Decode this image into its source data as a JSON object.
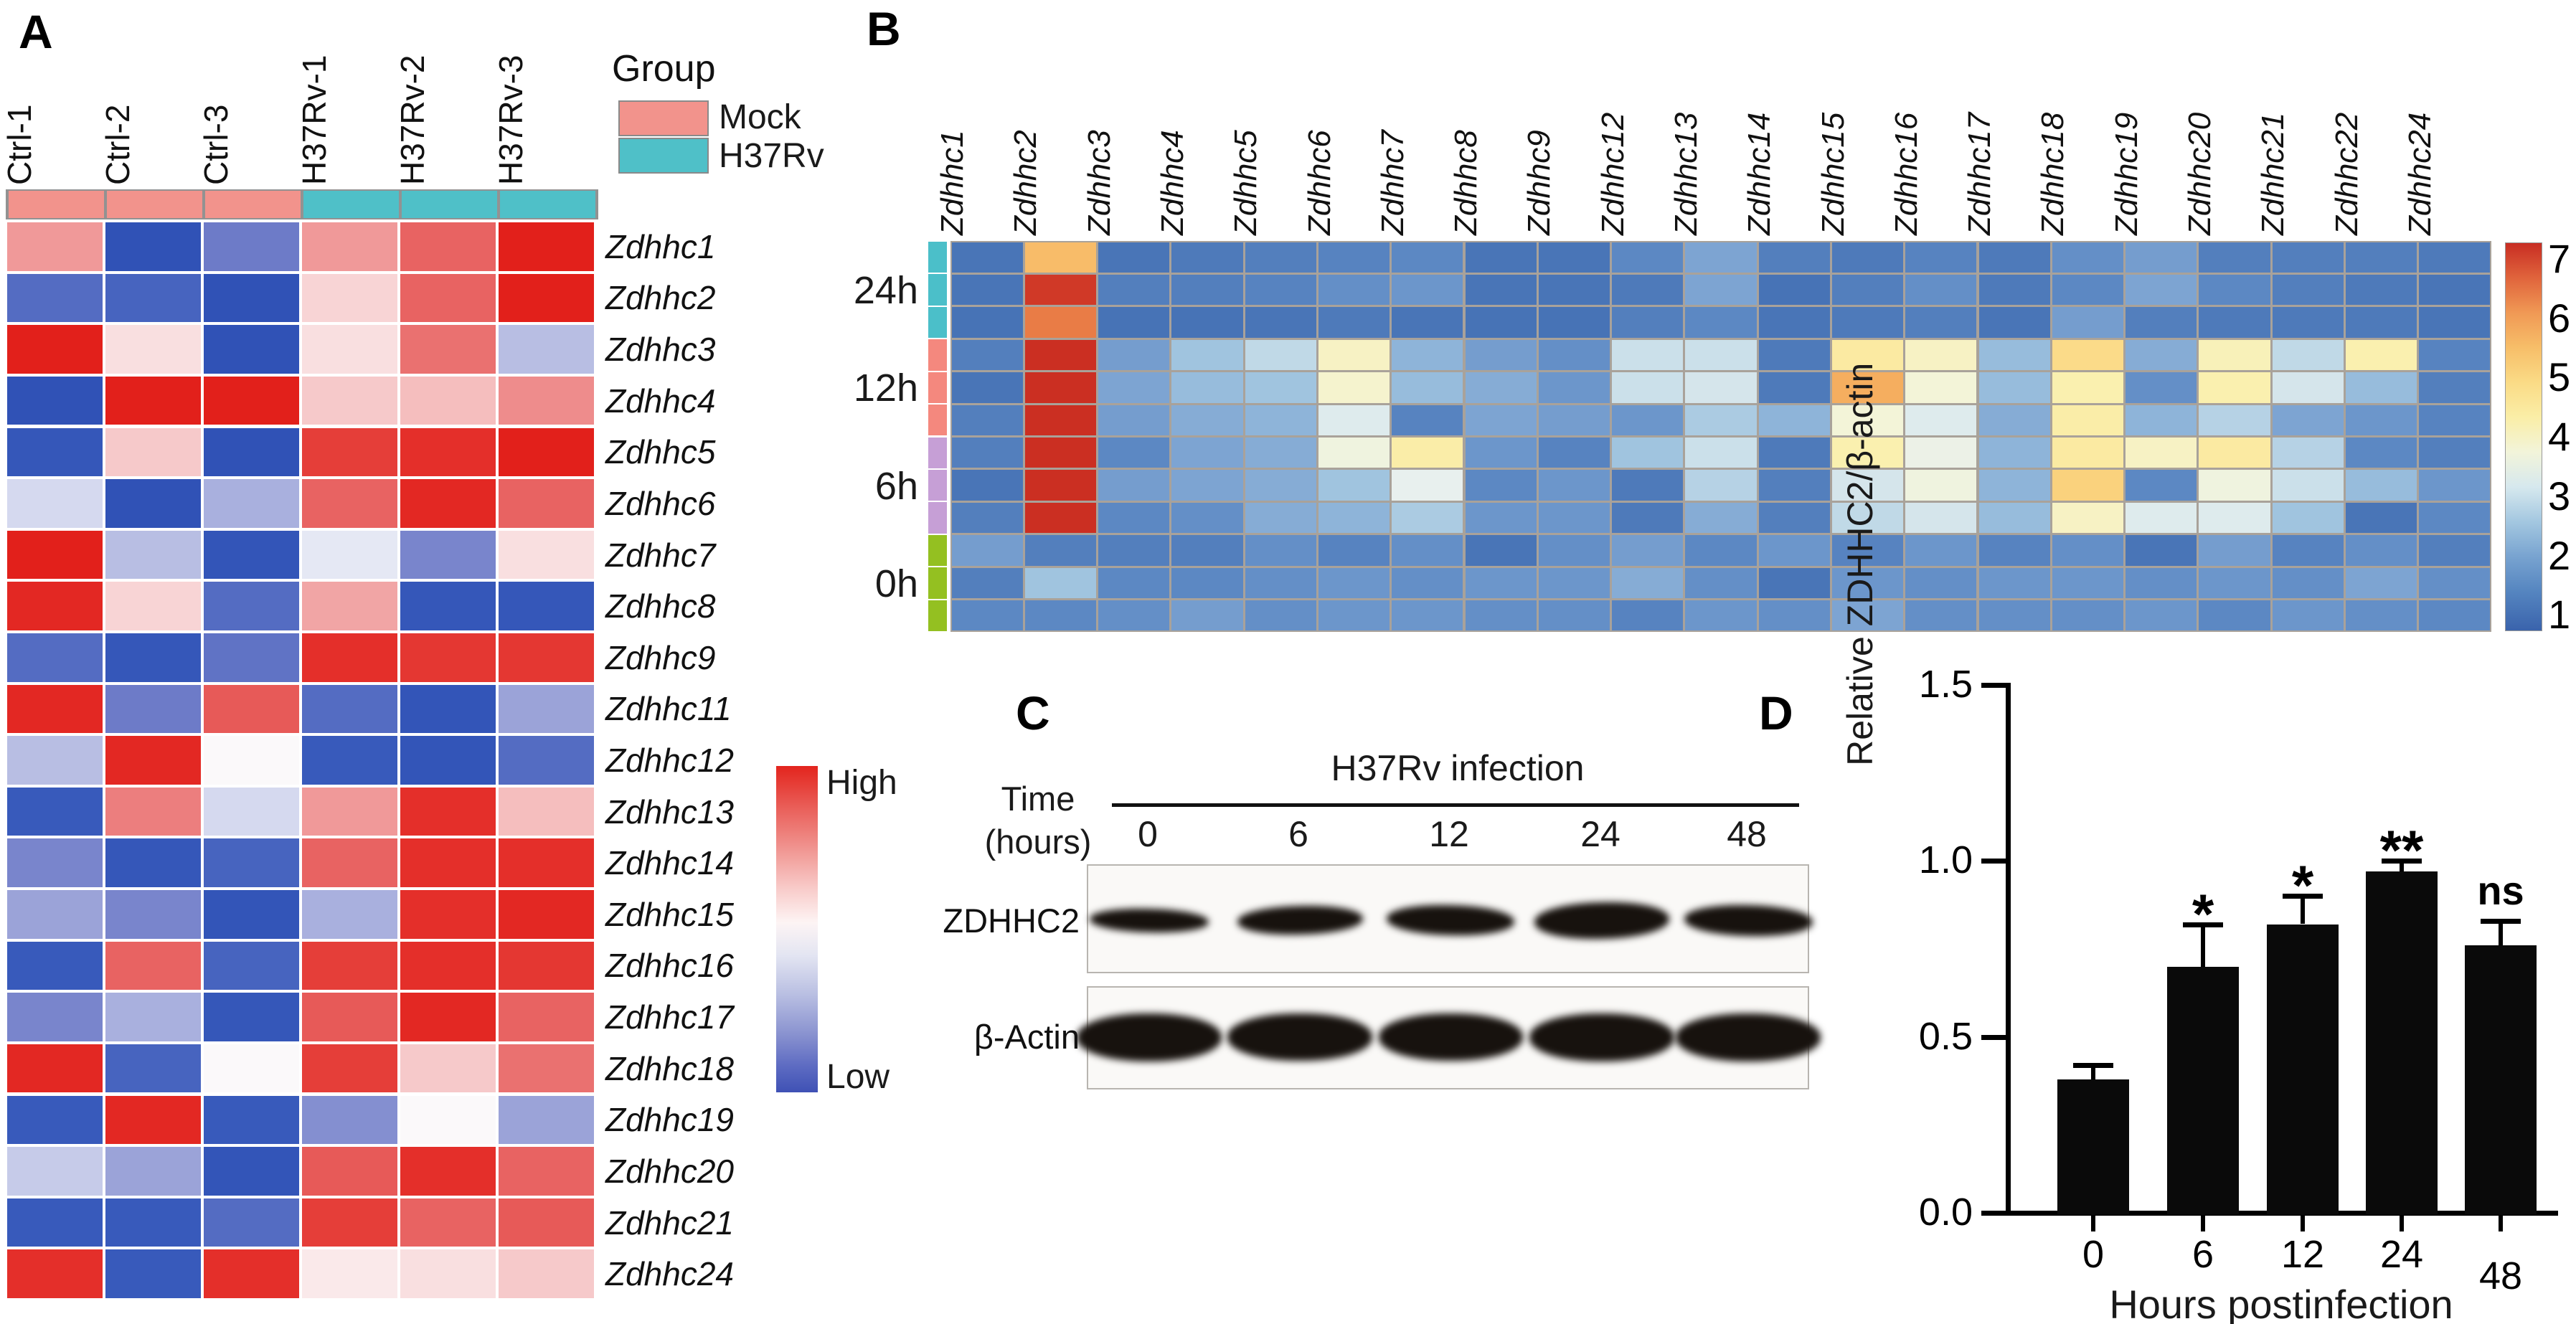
{
  "panels": {
    "a": "A",
    "b": "B",
    "c": "C",
    "d": "D"
  },
  "chart_data": [
    {
      "id": "panel_a_heatmap",
      "type": "heatmap",
      "columns": [
        "Ctrl-1",
        "Ctrl-2",
        "Ctrl-3",
        "H37Rv-1",
        "H37Rv-2",
        "H37Rv-3"
      ],
      "rows": [
        "Zdhhc1",
        "Zdhhc2",
        "Zdhhc3",
        "Zdhhc4",
        "Zdhhc5",
        "Zdhhc6",
        "Zdhhc7",
        "Zdhhc8",
        "Zdhhc9",
        "Zdhhc11",
        "Zdhhc12",
        "Zdhhc13",
        "Zdhhc14",
        "Zdhhc15",
        "Zdhhc16",
        "Zdhhc17",
        "Zdhhc18",
        "Zdhhc19",
        "Zdhhc20",
        "Zdhhc21",
        "Zdhhc24"
      ],
      "column_groups": [
        "Mock",
        "Mock",
        "Mock",
        "H37Rv",
        "H37Rv",
        "H37Rv"
      ],
      "legend": {
        "title": "Group",
        "entries": [
          {
            "label": "Mock",
            "color": "#F2938C"
          },
          {
            "label": "H37Rv",
            "color": "#4FC0C8"
          }
        ]
      },
      "colorbar": {
        "top": "High",
        "bottom": "Low"
      },
      "value_range": [
        -2,
        2
      ],
      "values": [
        [
          0.8,
          -1.8,
          -1.0,
          0.8,
          1.2,
          2.0
        ],
        [
          -1.2,
          -1.3,
          -1.8,
          0.3,
          1.2,
          2.0
        ],
        [
          2.0,
          0.2,
          -1.8,
          0.2,
          1.1,
          -0.4
        ],
        [
          -1.8,
          2.0,
          2.0,
          0.4,
          0.5,
          0.9
        ],
        [
          -1.6,
          0.4,
          -1.8,
          1.6,
          1.8,
          2.0
        ],
        [
          -0.2,
          -1.8,
          -0.5,
          1.2,
          1.9,
          1.2
        ],
        [
          2.0,
          -0.4,
          -1.7,
          -0.1,
          -0.9,
          0.2
        ],
        [
          1.9,
          0.3,
          -1.2,
          0.7,
          -1.6,
          -1.6
        ],
        [
          -1.2,
          -1.6,
          -1.1,
          1.8,
          1.7,
          1.7
        ],
        [
          1.9,
          -1.0,
          1.3,
          -1.2,
          -1.7,
          -0.6
        ],
        [
          -0.4,
          1.9,
          0.0,
          -1.5,
          -1.7,
          -1.2
        ],
        [
          -1.5,
          1.0,
          -0.2,
          0.8,
          1.8,
          0.5
        ],
        [
          -0.9,
          -1.6,
          -1.3,
          1.2,
          1.8,
          1.8
        ],
        [
          -0.6,
          -0.9,
          -1.7,
          -0.5,
          1.8,
          1.9
        ],
        [
          -1.5,
          1.2,
          -1.3,
          1.6,
          1.8,
          1.7
        ],
        [
          -0.9,
          -0.5,
          -1.6,
          1.3,
          1.9,
          1.2
        ],
        [
          1.9,
          -1.3,
          0.0,
          1.6,
          0.4,
          1.1
        ],
        [
          -1.5,
          1.9,
          -1.5,
          -0.8,
          0.0,
          -0.6
        ],
        [
          -0.3,
          -0.6,
          -1.7,
          1.3,
          1.8,
          1.2
        ],
        [
          -1.5,
          -1.5,
          -1.2,
          1.6,
          1.2,
          1.3
        ],
        [
          1.8,
          -1.5,
          1.8,
          0.1,
          0.2,
          0.4
        ]
      ]
    },
    {
      "id": "panel_b_heatmap",
      "type": "heatmap",
      "columns": [
        "Zdhhc1",
        "Zdhhc2",
        "Zdhhc3",
        "Zdhhc4",
        "Zdhhc5",
        "Zdhhc6",
        "Zdhhc7",
        "Zdhhc8",
        "Zdhhc9",
        "Zdhhc12",
        "Zdhhc13",
        "Zdhhc14",
        "Zdhhc15",
        "Zdhhc16",
        "Zdhhc17",
        "Zdhhc18",
        "Zdhhc19",
        "Zdhhc20",
        "Zdhhc21",
        "Zdhhc22",
        "Zdhhc24"
      ],
      "row_groups": [
        {
          "label": "24h",
          "color": "#4BBFC9",
          "rows": 3
        },
        {
          "label": "12h",
          "color": "#F4887E",
          "rows": 3
        },
        {
          "label": "6h",
          "color": "#C69FD6",
          "rows": 3
        },
        {
          "label": "0h",
          "color": "#94C021",
          "rows": 3
        }
      ],
      "colorbar": {
        "ticks": [
          7,
          6,
          5,
          4,
          3,
          2,
          1
        ]
      },
      "value_range": [
        1,
        7
      ],
      "values": [
        [
          1.8,
          5.6,
          1.8,
          1.9,
          2.0,
          2.1,
          2.2,
          1.8,
          1.8,
          2.2,
          2.6,
          2.0,
          1.9,
          2.1,
          1.9,
          2.3,
          2.5,
          2.0,
          2.0,
          2.0,
          1.9
        ],
        [
          1.8,
          6.9,
          2.0,
          2.0,
          2.1,
          2.3,
          2.4,
          1.8,
          1.8,
          1.9,
          2.6,
          1.7,
          2.0,
          2.3,
          1.9,
          2.2,
          2.6,
          2.2,
          2.0,
          1.9,
          1.8
        ],
        [
          1.7,
          6.3,
          1.7,
          1.7,
          1.8,
          1.9,
          1.8,
          1.7,
          1.7,
          2.0,
          2.2,
          1.8,
          1.9,
          2.0,
          1.8,
          2.5,
          2.0,
          1.9,
          1.9,
          1.9,
          1.8
        ],
        [
          2.0,
          7.0,
          2.5,
          3.0,
          3.3,
          4.2,
          2.8,
          2.5,
          2.3,
          3.4,
          3.4,
          1.9,
          4.6,
          4.2,
          2.9,
          5.0,
          2.7,
          4.3,
          3.3,
          4.4,
          2.1
        ],
        [
          1.8,
          7.0,
          2.6,
          2.9,
          3.0,
          4.1,
          2.9,
          2.7,
          2.4,
          3.4,
          3.5,
          1.9,
          5.8,
          4.0,
          2.9,
          4.4,
          2.3,
          4.4,
          3.5,
          2.9,
          2.0
        ],
        [
          2.0,
          7.0,
          2.5,
          2.7,
          2.8,
          3.6,
          2.1,
          2.6,
          2.5,
          2.4,
          3.1,
          2.8,
          4.0,
          3.6,
          2.7,
          4.5,
          2.8,
          3.2,
          2.6,
          2.4,
          2.1
        ],
        [
          2.0,
          7.0,
          2.2,
          2.6,
          2.7,
          3.9,
          4.5,
          2.4,
          2.1,
          3.0,
          3.4,
          1.9,
          4.4,
          3.8,
          2.8,
          4.6,
          4.2,
          4.6,
          3.2,
          2.2,
          2.0
        ],
        [
          1.8,
          7.0,
          2.5,
          2.6,
          2.7,
          3.0,
          3.7,
          2.2,
          2.4,
          1.9,
          3.2,
          2.0,
          3.5,
          3.9,
          2.8,
          5.2,
          2.2,
          3.9,
          3.4,
          2.9,
          2.4
        ],
        [
          2.0,
          7.0,
          2.2,
          2.3,
          2.7,
          2.8,
          3.1,
          2.4,
          2.4,
          1.9,
          2.7,
          2.0,
          3.3,
          3.5,
          2.9,
          4.2,
          3.6,
          3.6,
          3.0,
          1.8,
          2.2
        ],
        [
          2.5,
          2.0,
          2.0,
          2.0,
          2.3,
          2.1,
          2.3,
          1.8,
          2.3,
          2.5,
          2.2,
          2.4,
          2.1,
          2.4,
          2.1,
          2.3,
          1.8,
          2.5,
          2.1,
          2.3,
          2.0
        ],
        [
          2.0,
          3.0,
          2.2,
          2.2,
          2.3,
          2.4,
          2.3,
          2.4,
          2.4,
          2.7,
          2.3,
          1.8,
          2.4,
          2.3,
          2.4,
          2.4,
          2.3,
          2.4,
          2.3,
          2.6,
          2.3
        ],
        [
          2.2,
          2.2,
          2.3,
          2.5,
          2.3,
          2.4,
          2.4,
          2.3,
          2.3,
          2.1,
          2.4,
          2.3,
          2.6,
          2.3,
          2.3,
          2.3,
          2.4,
          2.2,
          2.4,
          2.3,
          2.2
        ]
      ]
    },
    {
      "id": "panel_c_blot",
      "type": "table",
      "title": "H37Rv infection",
      "row_header_line1": "Time",
      "row_header_line2": "(hours)",
      "lanes": [
        "0",
        "6",
        "12",
        "24",
        "48"
      ],
      "blots": [
        {
          "label": "ZDHHC2",
          "band_intensity": [
            0.35,
            0.55,
            0.62,
            0.85,
            0.65
          ]
        },
        {
          "label": "β-Actin",
          "band_intensity": [
            0.95,
            0.92,
            0.9,
            0.95,
            0.97
          ]
        }
      ]
    },
    {
      "id": "panel_d_bar",
      "type": "bar",
      "categories": [
        "0",
        "6",
        "12",
        "24",
        "48"
      ],
      "values": [
        0.38,
        0.7,
        0.82,
        0.97,
        0.76
      ],
      "errors": [
        0.04,
        0.12,
        0.08,
        0.03,
        0.07
      ],
      "significance": [
        "",
        "*",
        "*",
        "**",
        "ns"
      ],
      "xlabel": "Hours postinfection",
      "ylabel": "Relative ZDHHC2/β-actin",
      "ylim": [
        0,
        1.5
      ],
      "yticks": [
        "1.5",
        "1.0",
        "0.5",
        "0.0"
      ]
    }
  ]
}
